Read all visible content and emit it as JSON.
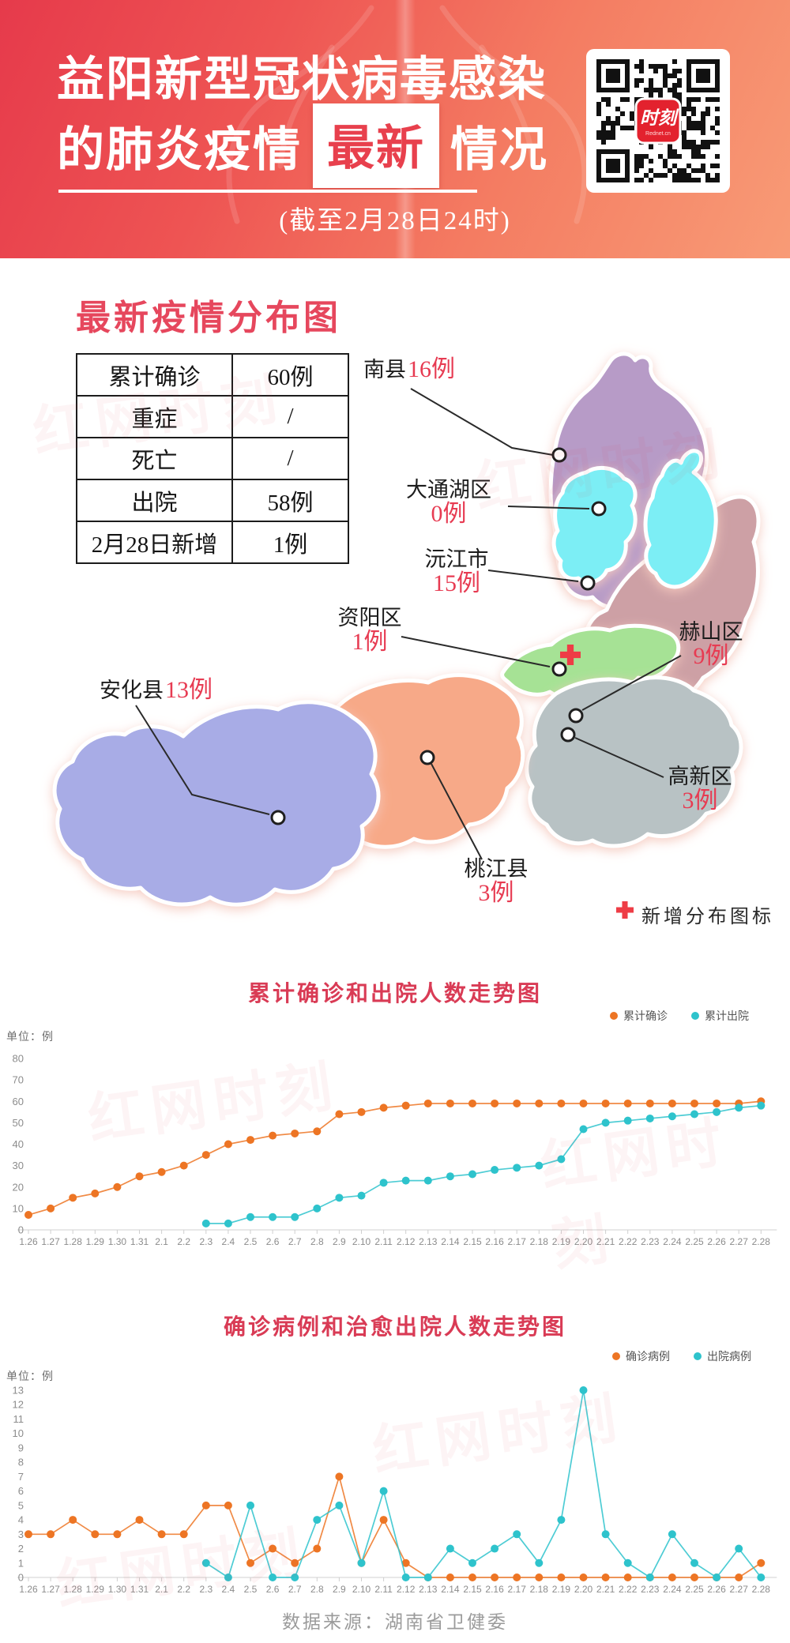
{
  "header": {
    "title_line1": "益阳新型冠状病毒感染",
    "title_line2_prefix": "的肺炎疫情",
    "title_line2_highlight": "最新",
    "title_line2_suffix": "情况",
    "subtitle": "(截至2月28日24时)",
    "highlight_color": "#e8404d",
    "qr_logo": "时刻",
    "qr_logo_sub": "Rednet.cn"
  },
  "section_title": "最新疫情分布图",
  "stats_table": {
    "rows": [
      {
        "label": "累计确诊",
        "value": "60例"
      },
      {
        "label": "重症",
        "value": "/"
      },
      {
        "label": "死亡",
        "value": "/"
      },
      {
        "label": "出院",
        "value": "58例"
      },
      {
        "label": "2月28日新增",
        "value": "1例"
      }
    ]
  },
  "map": {
    "regions": [
      {
        "id": "nanxian",
        "name": "南县",
        "cases": "16例",
        "color": "#b79bc7"
      },
      {
        "id": "datonghu",
        "name": "大通湖区",
        "cases": "0例",
        "color": "#7beef5"
      },
      {
        "id": "yuanjiang",
        "name": "沅江市",
        "cases": "15例",
        "color": "#cda0a5"
      },
      {
        "id": "ziyang",
        "name": "资阳区",
        "cases": "1例",
        "color": "#a6e295"
      },
      {
        "id": "heshan",
        "name": "赫山区",
        "cases": "9例",
        "color": "#b8c2c4"
      },
      {
        "id": "gaoxin",
        "name": "高新区",
        "cases": "3例",
        "color": "#b8c2c4"
      },
      {
        "id": "taojiang",
        "name": "桃江县",
        "cases": "3例",
        "color": "#f7a988"
      },
      {
        "id": "anhua",
        "name": "安化县",
        "cases": "13例",
        "color": "#a8ace6"
      }
    ],
    "new_case_legend": "新增分布图标",
    "cross_color": "#ee3d46"
  },
  "watermark": "红网时刻",
  "footer": "数据来源：湖南省卫健委",
  "chart_data": [
    {
      "type": "line",
      "title": "累计确诊和出院人数走势图",
      "unit_label": "单位：例",
      "legend_position": "top-right",
      "grid": false,
      "ylim": [
        0,
        80
      ],
      "ytick_step": 10,
      "categories": [
        "1.26",
        "1.27",
        "1.28",
        "1.29",
        "1.30",
        "1.31",
        "2.1",
        "2.2",
        "2.3",
        "2.4",
        "2.5",
        "2.6",
        "2.7",
        "2.8",
        "2.9",
        "2.10",
        "2.11",
        "2.12",
        "2.13",
        "2.14",
        "2.15",
        "2.16",
        "2.17",
        "2.18",
        "2.19",
        "2.20",
        "2.21",
        "2.22",
        "2.23",
        "2.24",
        "2.25",
        "2.26",
        "2.27",
        "2.28"
      ],
      "series": [
        {
          "name": "累计确诊",
          "color": "#ED7524",
          "values": [
            7,
            10,
            15,
            17,
            20,
            25,
            27,
            30,
            35,
            40,
            42,
            44,
            45,
            46,
            54,
            55,
            57,
            58,
            59,
            59,
            59,
            59,
            59,
            59,
            59,
            59,
            59,
            59,
            59,
            59,
            59,
            59,
            59,
            60
          ]
        },
        {
          "name": "累计出院",
          "color": "#2EC3CC",
          "values": [
            null,
            null,
            null,
            null,
            null,
            null,
            null,
            null,
            3,
            3,
            6,
            6,
            6,
            10,
            15,
            16,
            22,
            23,
            23,
            25,
            26,
            28,
            29,
            30,
            33,
            47,
            50,
            51,
            52,
            53,
            54,
            55,
            57,
            58
          ]
        }
      ]
    },
    {
      "type": "line",
      "title": "确诊病例和治愈出院人数走势图",
      "unit_label": "单位：例",
      "legend_position": "top-right",
      "grid": false,
      "ylim": [
        0,
        13
      ],
      "ytick_step": 1,
      "categories": [
        "1.26",
        "1.27",
        "1.28",
        "1.29",
        "1.30",
        "1.31",
        "2.1",
        "2.2",
        "2.3",
        "2.4",
        "2.5",
        "2.6",
        "2.7",
        "2.8",
        "2.9",
        "2.10",
        "2.11",
        "2.12",
        "2.13",
        "2.14",
        "2.15",
        "2.16",
        "2.17",
        "2.18",
        "2.19",
        "2.20",
        "2.21",
        "2.22",
        "2.23",
        "2.24",
        "2.25",
        "2.26",
        "2.27",
        "2.28"
      ],
      "series": [
        {
          "name": "确诊病例",
          "color": "#ED7524",
          "values": [
            3,
            3,
            4,
            3,
            3,
            4,
            3,
            3,
            5,
            5,
            1,
            2,
            1,
            2,
            7,
            1,
            4,
            1,
            0,
            0,
            0,
            0,
            0,
            0,
            0,
            0,
            0,
            0,
            0,
            0,
            0,
            0,
            0,
            1
          ]
        },
        {
          "name": "出院病例",
          "color": "#2EC3CC",
          "values": [
            null,
            null,
            null,
            null,
            null,
            null,
            null,
            null,
            1,
            0,
            5,
            0,
            0,
            4,
            5,
            1,
            6,
            0,
            0,
            2,
            1,
            2,
            3,
            1,
            4,
            13,
            3,
            1,
            0,
            3,
            1,
            0,
            2,
            0
          ]
        }
      ]
    }
  ]
}
